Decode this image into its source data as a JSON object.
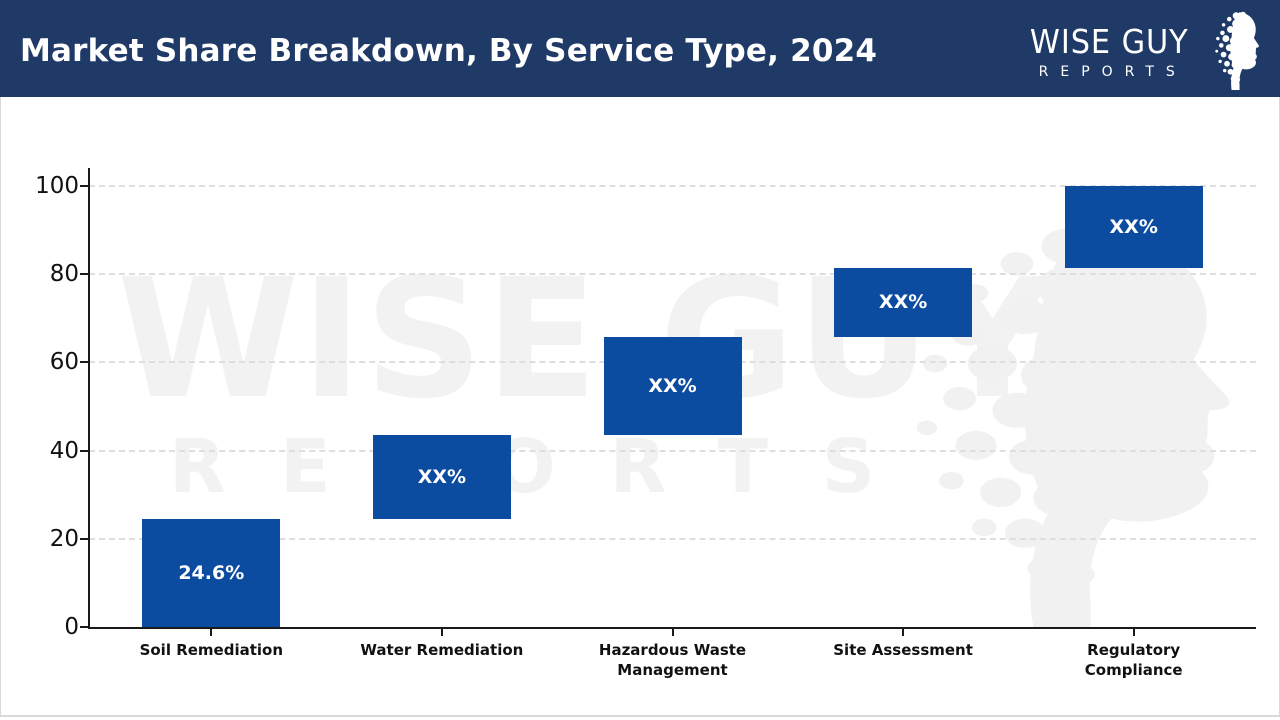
{
  "header": {
    "title": "Market Share Breakdown, By Service Type, 2024",
    "brand_line1": "WISE GUY",
    "brand_line2": "REPORTS"
  },
  "watermark": {
    "line1": "WISE GUY",
    "line2": "REPORTS"
  },
  "colors": {
    "header_bg": "#1f3a67",
    "bar_blue": "#0c4ca0",
    "gridline": "#dedede",
    "watermark_gray": "#f2f2f2",
    "bar_label_text": "#ffffff"
  },
  "chart_data": {
    "type": "bar",
    "subtype": "waterfall-stacked-percent",
    "title": "Market Share Breakdown, By Service Type, 2024",
    "categories": [
      "Soil Remediation",
      "Water Remediation",
      "Hazardous Waste Management",
      "Site Assessment",
      "Regulatory Compliance"
    ],
    "segments": [
      {
        "category": "Soil Remediation",
        "start": 0,
        "end": 24.6,
        "value": 24.6,
        "label": "24.6%"
      },
      {
        "category": "Water Remediation",
        "start": 24.6,
        "end": 43.5,
        "value": 18.9,
        "label": "XX%"
      },
      {
        "category": "Hazardous Waste Management",
        "start": 43.5,
        "end": 65.8,
        "value": 22.3,
        "label": "XX%"
      },
      {
        "category": "Site Assessment",
        "start": 65.8,
        "end": 81.4,
        "value": 15.6,
        "label": "XX%"
      },
      {
        "category": "Regulatory Compliance",
        "start": 81.4,
        "end": 100,
        "value": 18.6,
        "label": "XX%"
      }
    ],
    "xlabel": "",
    "ylabel": "",
    "yticks": [
      0,
      20,
      40,
      60,
      80,
      100
    ],
    "ylim": [
      0,
      100
    ],
    "grid": "horizontal-dashed",
    "legend": "none"
  }
}
